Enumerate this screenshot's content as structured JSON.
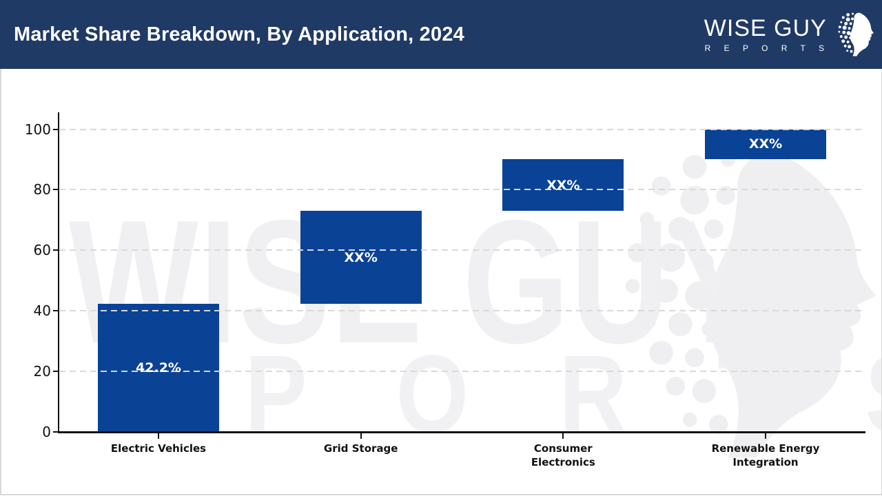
{
  "header": {
    "title": "Market Share Breakdown, By Application, 2024",
    "logo_line1": "WISE GUY",
    "logo_line2": "R E P O R T S",
    "bg_color": "#203a66"
  },
  "watermark": {
    "line1": "WISE GUY",
    "line2": "P O R T S"
  },
  "chart_data": {
    "type": "bar",
    "subtype": "waterfall",
    "title": "Market Share Breakdown, By Application, 2024",
    "categories": [
      "Electric Vehicles",
      "Grid Storage",
      "Consumer Electronics",
      "Renewable Energy Integration"
    ],
    "category_lines": [
      [
        "Electric Vehicles"
      ],
      [
        "Grid Storage"
      ],
      [
        "Consumer",
        "Electronics"
      ],
      [
        "Renewable Energy",
        "Integration"
      ]
    ],
    "segments": [
      {
        "category": "Electric Vehicles",
        "start": 0,
        "end": 42.2,
        "label": "42.2%"
      },
      {
        "category": "Grid Storage",
        "start": 42.2,
        "end": 73,
        "label": "XX%"
      },
      {
        "category": "Consumer Electronics",
        "start": 73,
        "end": 90,
        "label": "XX%"
      },
      {
        "category": "Renewable Energy Integration",
        "start": 90,
        "end": 100,
        "label": "XX%"
      }
    ],
    "xlabel": "",
    "ylabel": "",
    "ylim": [
      0,
      105
    ],
    "yticks": [
      0,
      20,
      40,
      60,
      80,
      100
    ],
    "grid": "horizontal-dashed",
    "legend": "none",
    "bar_color": "#0a4296",
    "value_label_color": "#ffffff",
    "gridline_color": "#d9d9d9",
    "axis_color": "#111111"
  }
}
